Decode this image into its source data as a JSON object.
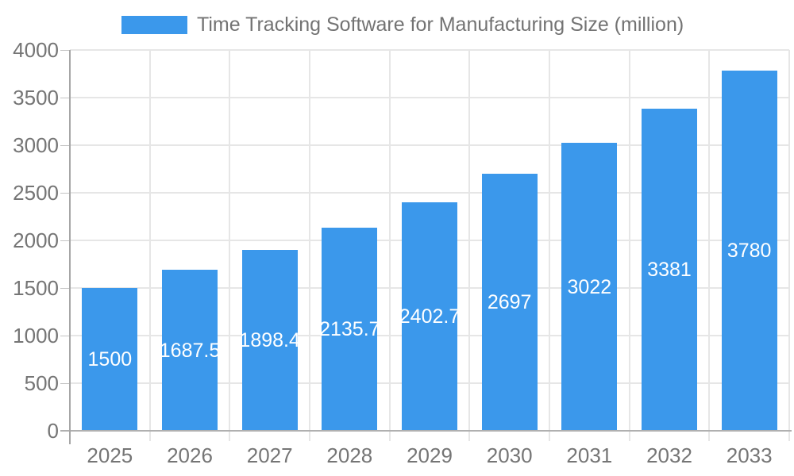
{
  "chart_data": {
    "type": "bar",
    "title": "Time Tracking Software for Manufacturing Size (million)",
    "categories": [
      "2025",
      "2026",
      "2027",
      "2028",
      "2029",
      "2030",
      "2031",
      "2032",
      "2033"
    ],
    "values": [
      1500,
      1687.5,
      1898.4,
      2135.7,
      2402.7,
      2697,
      3022,
      3381,
      3780
    ],
    "bar_labels": [
      "1500",
      "1687.5",
      "1898.4",
      "2135.7",
      "2402.7",
      "2697",
      "3022",
      "3381",
      "3780"
    ],
    "ytick_labels": [
      "0",
      "500",
      "1000",
      "1500",
      "2000",
      "2500",
      "3000",
      "3500",
      "4000"
    ],
    "ylim": [
      0,
      4000
    ],
    "ytick_step": 500,
    "xlabel": "",
    "ylabel": "",
    "grid": true,
    "legend_position": "top",
    "bar_label_position": "inside-center",
    "colors": {
      "bar": "#3b98eb",
      "bar_label": "#ffffff",
      "axis_text": "#757575",
      "title_text": "#737373",
      "grid_line": "#e6e6e6",
      "x_axis_line": "#b0b0b0",
      "y_axis_line": "#a6a6a6",
      "tick": "#c4c4c4",
      "background": "#ffffff"
    }
  }
}
